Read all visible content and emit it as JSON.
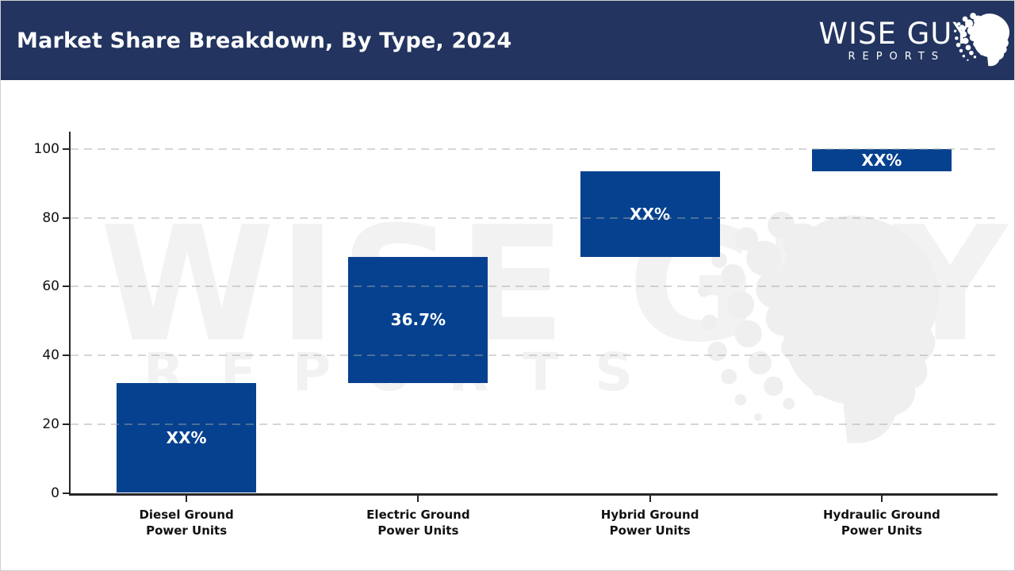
{
  "header": {
    "title": "Market Share Breakdown, By Type, 2024",
    "logo": {
      "line1": "WISE GUY",
      "line2": "REPORTS"
    }
  },
  "watermark": {
    "line1": "WISE GUY",
    "line2": "REPORTS"
  },
  "colors": {
    "header_bg": "#22345f",
    "bar": "#05418f",
    "axis": "#262626",
    "grid_rgba": "rgba(165,165,165,0.45)",
    "watermark": "#f2f2f2",
    "bar_label_text": "#ffffff",
    "title_text": "#ffffff"
  },
  "chart_data": {
    "type": "bar",
    "subtype": "waterfall",
    "title": "Market Share Breakdown, By Type, 2024",
    "categories": [
      [
        "Diesel Ground",
        "Power Units"
      ],
      [
        "Electric Ground",
        "Power Units"
      ],
      [
        "Hybrid Ground",
        "Power Units"
      ],
      [
        "Hydraulic Ground",
        "Power Units"
      ]
    ],
    "segments": [
      {
        "category": "Diesel Ground Power Units",
        "label": "XX%",
        "start": 0,
        "end": 32,
        "value": 32
      },
      {
        "category": "Electric Ground Power Units",
        "label": "36.7%",
        "start": 32,
        "end": 68.7,
        "value": 36.7
      },
      {
        "category": "Hybrid Ground Power Units",
        "label": "XX%",
        "start": 68.7,
        "end": 93.6,
        "value": 24.9
      },
      {
        "category": "Hydraulic Ground Power Units",
        "label": "XX%",
        "start": 93.6,
        "end": 100,
        "value": 6.4
      }
    ],
    "xlabel": "",
    "ylabel": "",
    "ylim": [
      0,
      100
    ],
    "yticks": [
      0,
      20,
      40,
      60,
      80,
      100
    ],
    "grid": "dashed-horizontal",
    "legend": "none",
    "bar_color": "#05418f"
  }
}
